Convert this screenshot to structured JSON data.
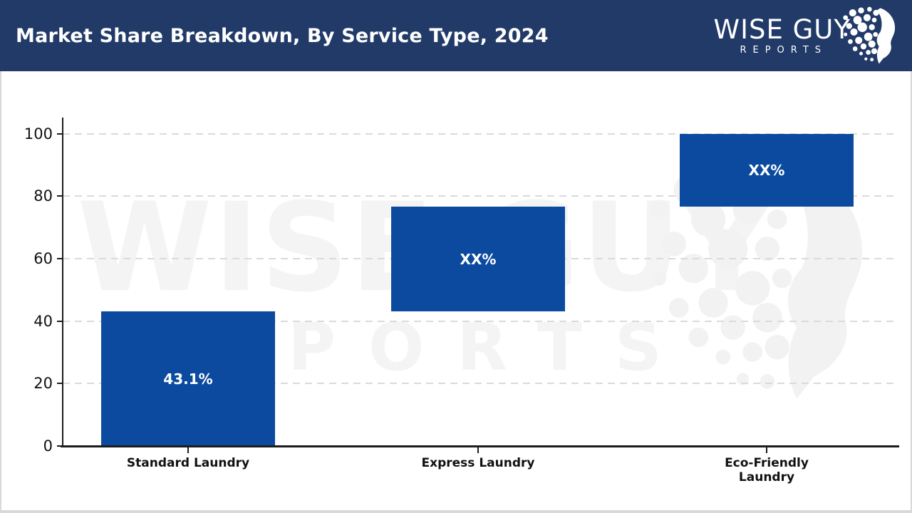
{
  "header": {
    "title": "Market Share Breakdown, By Service Type, 2024",
    "bg_color": "#213a67",
    "logo": {
      "line1": "WISE GUY",
      "line2": "REPORTS"
    }
  },
  "watermark": {
    "line1": "WISE GUY",
    "line2": "REPORTS"
  },
  "chart_data": {
    "type": "bar",
    "subtype": "waterfall",
    "title": "Market Share Breakdown, By Service Type, 2024",
    "categories": [
      "Standard Laundry",
      "Express Laundry",
      "Eco-Friendly\nLaundry"
    ],
    "bars": [
      {
        "category": "Standard Laundry",
        "label": "43.1%",
        "start": 0,
        "end": 43.1
      },
      {
        "category": "Express Laundry",
        "label": "XX%",
        "start": 43.1,
        "end": 76.6
      },
      {
        "category": "Eco-Friendly Laundry",
        "label": "XX%",
        "start": 76.6,
        "end": 99.9
      }
    ],
    "xlabel": "",
    "ylabel": "",
    "ylim": [
      0,
      100
    ],
    "yticks": [
      0,
      20,
      40,
      60,
      80,
      100
    ],
    "grid": "horizontal-dashed",
    "legend": "none",
    "bar_color": "#0b4a9f",
    "bar_label_color": "#ffffff",
    "axis_color": "#1c1c1c",
    "gridline_color": "#dadada"
  }
}
